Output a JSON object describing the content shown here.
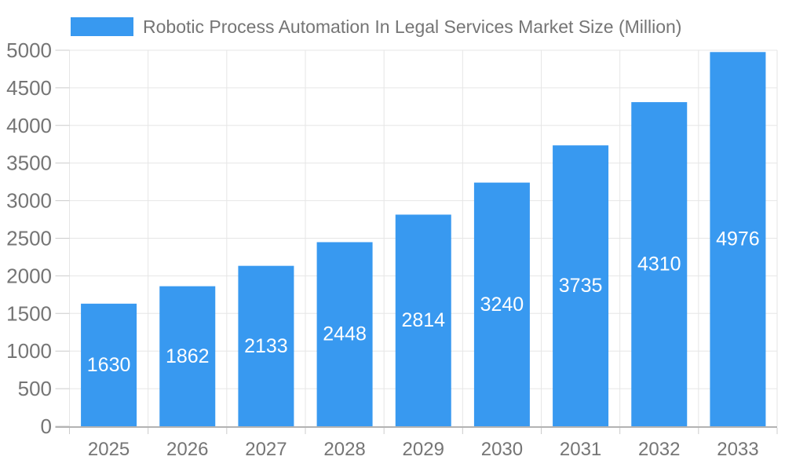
{
  "chart_data": {
    "type": "bar",
    "title": "Robotic Process Automation In Legal Services Market Size (Million)",
    "categories": [
      "2025",
      "2026",
      "2027",
      "2028",
      "2029",
      "2030",
      "2031",
      "2032",
      "2033"
    ],
    "values": [
      1630,
      1862,
      2133,
      2448,
      2814,
      3240,
      3735,
      4310,
      4976
    ],
    "xlabel": "",
    "ylabel": "",
    "ylim": [
      0,
      5000
    ],
    "yticks": [
      0,
      500,
      1000,
      1500,
      2000,
      2500,
      3000,
      3500,
      4000,
      4500,
      5000
    ],
    "grid": true,
    "legend_position": "top-left",
    "colors": {
      "bar": "#3899f0",
      "value_label": "#ffffff",
      "axis_text": "#757575",
      "gridline": "#e6e6e6",
      "tick": "#cccccc",
      "baseline": "#b3b3b3",
      "background": "#ffffff"
    }
  }
}
